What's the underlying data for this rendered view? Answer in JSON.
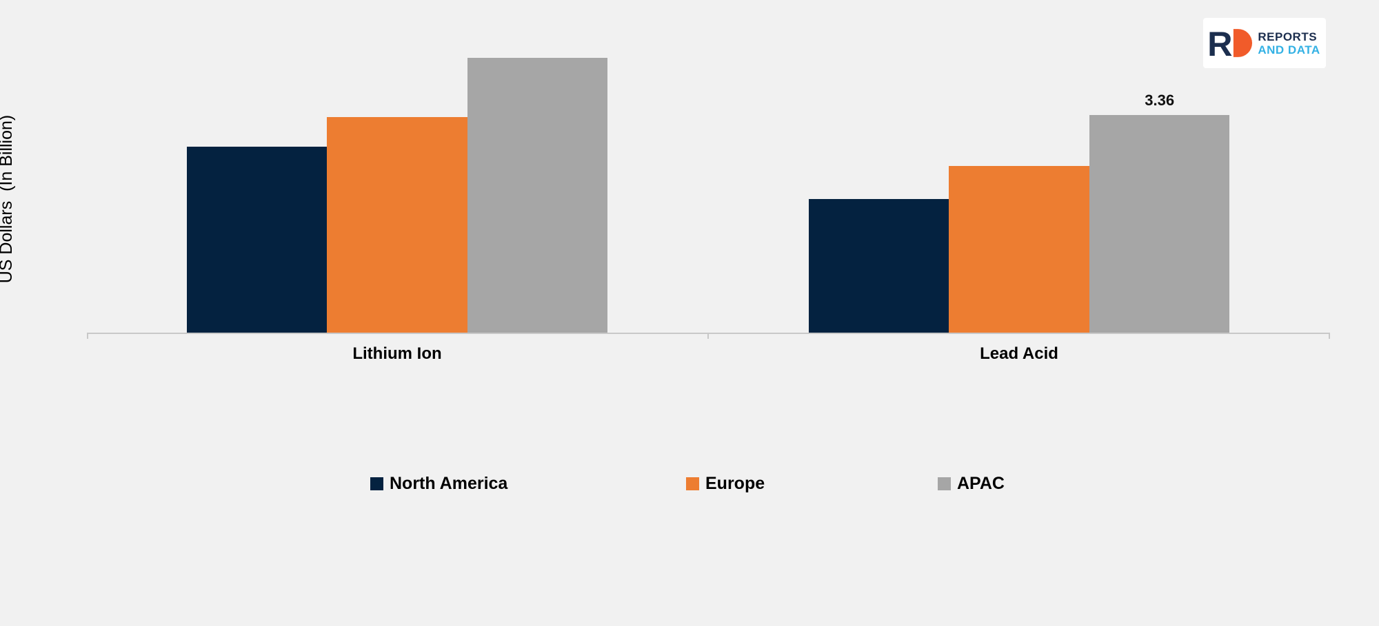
{
  "page": {
    "background": "#f1f1f1"
  },
  "logo": {
    "monogram_r": "R",
    "monogram_r_color": "#1c2e4e",
    "monogram_d_color": "#f15b2a",
    "brand_top": "REPORTS",
    "brand_top_color": "#1c2e4e",
    "brand_bottom": "AND DATA",
    "brand_bottom_color": "#33b1e4"
  },
  "chart_data": {
    "type": "bar",
    "title": "",
    "xlabel": "",
    "ylabel": "US Dollars  (In Billion)",
    "categories": [
      "Lithium Ion",
      "Lead Acid"
    ],
    "series": [
      {
        "name": "North America",
        "color": "#042240",
        "values": [
          2.87,
          2.06
        ]
      },
      {
        "name": "Europe",
        "color": "#ed7d31",
        "values": [
          3.33,
          2.57
        ]
      },
      {
        "name": "APAC",
        "color": "#a6a6a6",
        "values": [
          4.24,
          3.36
        ]
      }
    ],
    "data_labels": [
      {
        "series": "APAC",
        "category": "Lead Acid",
        "text": "3.36"
      }
    ],
    "ylim": [
      0,
      4.8
    ],
    "grid": false,
    "axis_color": "#c8c8c8",
    "legend_position": "bottom"
  }
}
